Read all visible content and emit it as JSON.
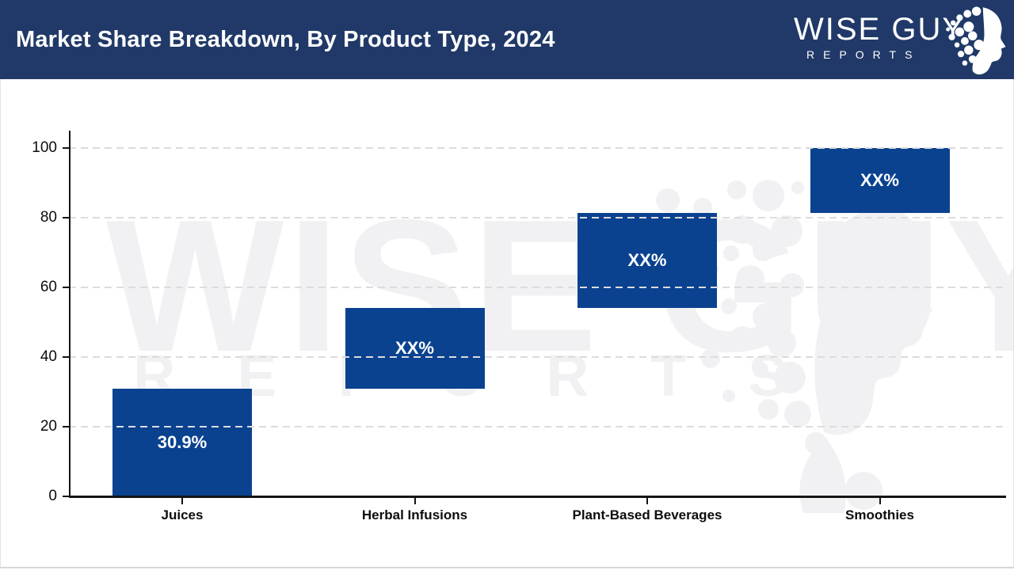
{
  "header": {
    "title": "Market Share Breakdown, By Product Type, 2024",
    "logo": {
      "line1": "WISE GUY",
      "line2": "REPORTS",
      "head_icon": "dotted-face-profile"
    }
  },
  "watermark": {
    "line1": "WISE GUY",
    "line2": "REPORTS"
  },
  "chart_data": {
    "type": "bar",
    "subtype": "waterfall",
    "title": "Market Share Breakdown, By Product Type, 2024",
    "categories": [
      "Juices",
      "Herbal Infusions",
      "Plant-Based Beverages",
      "Smoothies"
    ],
    "series": [
      {
        "name": "Market share (%)",
        "segments": [
          {
            "category": "Juices",
            "start": 0,
            "end": 30.9,
            "label": "30.9%"
          },
          {
            "category": "Herbal Infusions",
            "start": 30.9,
            "end": 54.1,
            "label": "XX%"
          },
          {
            "category": "Plant-Based Beverages",
            "start": 54.1,
            "end": 81.4,
            "label": "XX%"
          },
          {
            "category": "Smoothies",
            "start": 81.4,
            "end": 100,
            "label": "XX%"
          }
        ]
      }
    ],
    "xlabel": "",
    "ylabel": "",
    "ylim": [
      0,
      100
    ],
    "yticks": [
      0,
      20,
      40,
      60,
      80,
      100
    ],
    "grid": "horizontal-dashed",
    "legend": "none",
    "colors": {
      "bar": "#0a4290",
      "bar_label": "#ffffff",
      "header_bg": "#203968",
      "gridline": "#dcdcdc",
      "axis": "#141414",
      "watermark": "#f1f1f3"
    }
  }
}
